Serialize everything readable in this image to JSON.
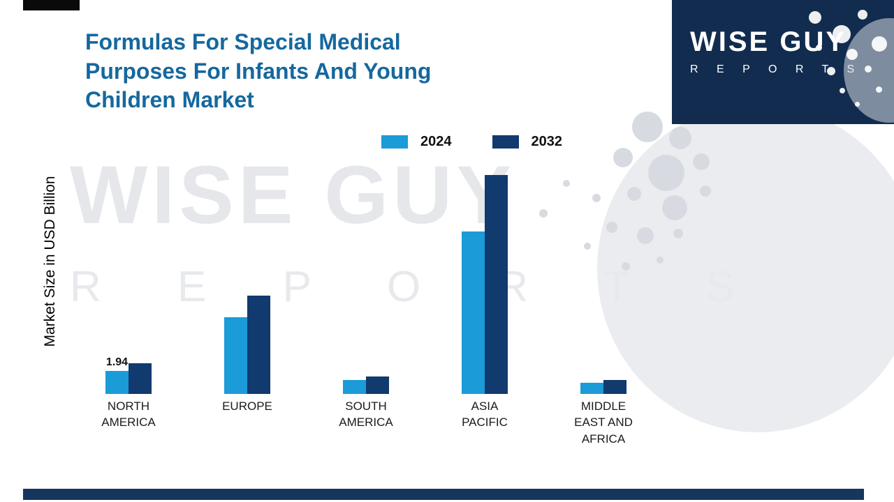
{
  "header": {
    "title_line1": "Formulas For Special Medical",
    "title_line2": "Purposes For Infants And Young",
    "title_line3": "Children Market"
  },
  "logo": {
    "wordmark": "WISE GUY",
    "subtitle": "R E P O R T S"
  },
  "watermark": {
    "line1": "WISE GUY",
    "line2": "R E P O R T S"
  },
  "colors": {
    "title": "#15689e",
    "bar_2024": "#1b9bd8",
    "bar_2032": "#113a6e",
    "logo_box_navy": "#112c4e",
    "footer_navy": "#16365e",
    "top_strip_black": "#0a0a0a",
    "watermark_gray": "#e5e7ea"
  },
  "chart_data": {
    "type": "bar",
    "title": "Formulas For Special Medical Purposes For Infants And Young Children Market",
    "xlabel": "",
    "ylabel": "Market Size in USD Billion",
    "units": "USD Billion",
    "ylim": [
      0,
      20
    ],
    "grid": false,
    "legend_position": "top",
    "categories": [
      "NORTH AMERICA",
      "EUROPE",
      "SOUTH AMERICA",
      "ASIA PACIFIC",
      "MIDDLE EAST AND AFRICA"
    ],
    "series": [
      {
        "name": "2024",
        "color": "#1b9bd8",
        "values": [
          1.94,
          6.5,
          1.2,
          13.7,
          0.95
        ]
      },
      {
        "name": "2032",
        "color": "#113a6e",
        "values": [
          2.6,
          8.3,
          1.5,
          18.5,
          1.2
        ]
      }
    ],
    "annotations": [
      {
        "category": "NORTH AMERICA",
        "series": "2024",
        "text": "1.94"
      }
    ]
  }
}
